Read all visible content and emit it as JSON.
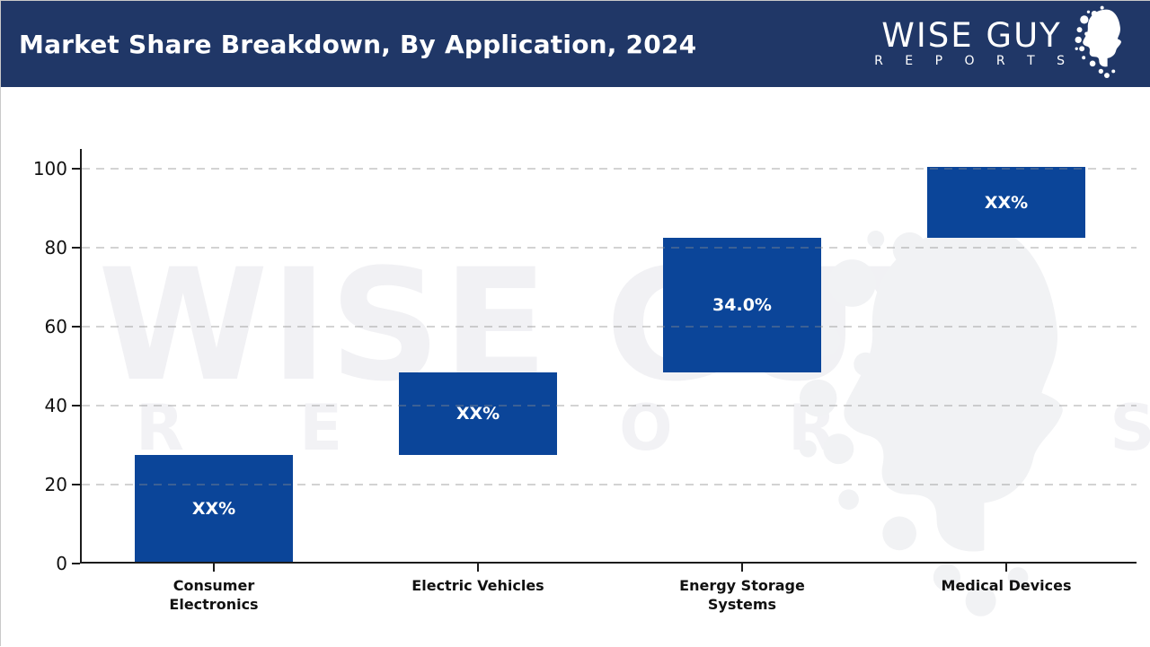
{
  "header": {
    "title": "Market Share Breakdown, By Application, 2024",
    "brand": {
      "line1": "WISE GUY",
      "line2": "R E P O R T S"
    }
  },
  "watermark": {
    "line1": "WISE GUY",
    "line2": "R E P O R T S"
  },
  "colors": {
    "header_bg": "#203767",
    "bar": "#0b4599",
    "axis": "#1c1c1c",
    "gridline": "#d6d6d6",
    "watermark": "#f1f1f4",
    "bar_label_text": "#ffffff"
  },
  "chart_data": {
    "type": "bar",
    "subtype": "waterfall",
    "title": "Market Share Breakdown, By Application, 2024",
    "xlabel": "",
    "ylabel": "",
    "categories": [
      "Consumer Electronics",
      "Electric Vehicles",
      "Energy Storage Systems",
      "Medical Devices"
    ],
    "category_lines": [
      [
        "Consumer",
        "Electronics"
      ],
      [
        "Electric Vehicles"
      ],
      [
        "Energy Storage",
        "Systems"
      ],
      [
        "Medical Devices"
      ]
    ],
    "segments": [
      {
        "category": "Consumer Electronics",
        "start": 0,
        "end": 27,
        "value": 27,
        "label": "XX%"
      },
      {
        "category": "Electric Vehicles",
        "start": 27,
        "end": 48,
        "value": 21,
        "label": "XX%"
      },
      {
        "category": "Energy Storage Systems",
        "start": 48,
        "end": 82,
        "value": 34,
        "label": "34.0%"
      },
      {
        "category": "Medical Devices",
        "start": 82,
        "end": 100,
        "value": 18,
        "label": "XX%"
      }
    ],
    "yticks": [
      0,
      20,
      40,
      60,
      80,
      100
    ],
    "ylim": [
      0,
      105
    ],
    "grid": "dashed-horizontal",
    "legend": null
  }
}
